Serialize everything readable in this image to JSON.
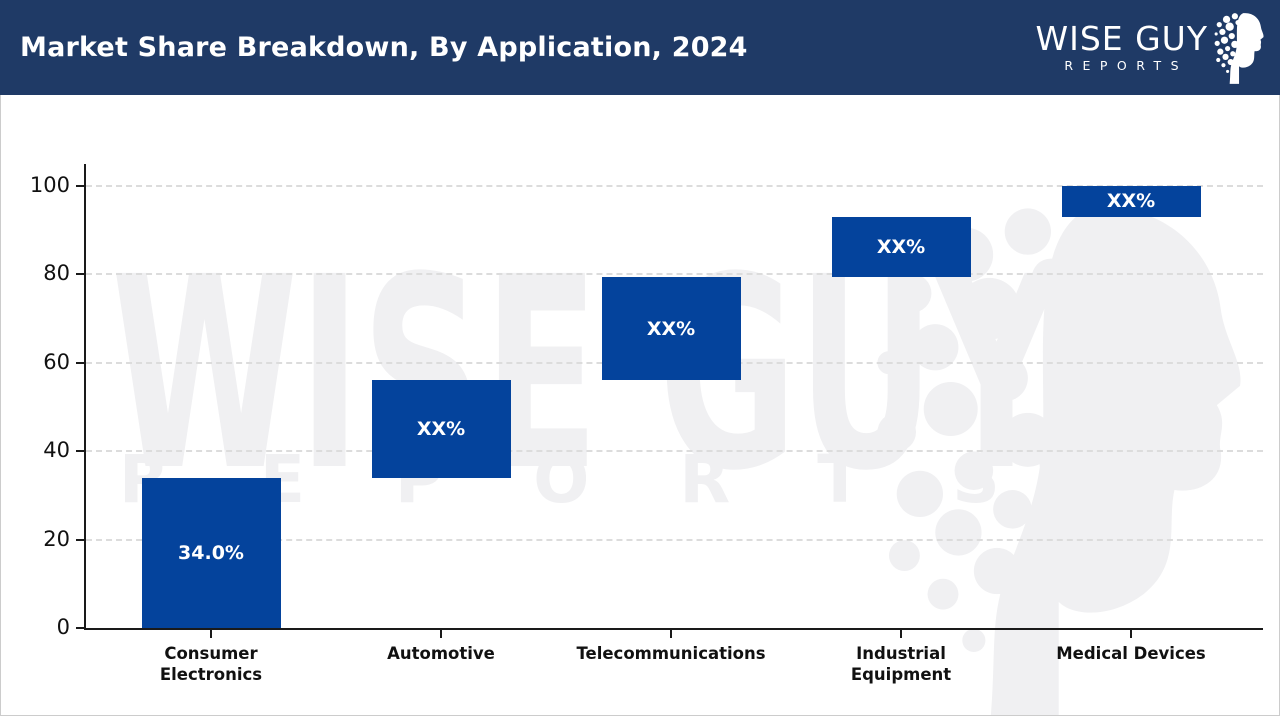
{
  "header": {
    "title": "Market Share Breakdown, By Application, 2024",
    "bg_color": "#1f3a66",
    "logo": {
      "name": "WISE GUY",
      "subtitle": "REPORTS"
    }
  },
  "watermark": {
    "word": "WISE GUY",
    "sub": "REPORTS",
    "color": "#f0f0f2"
  },
  "chart_data": {
    "type": "bar",
    "subtype": "waterfall",
    "title": "Market Share Breakdown, By Application, 2024",
    "categories": [
      "Consumer Electronics",
      "Automotive",
      "Telecommunications",
      "Industrial Equipment",
      "Medical Devices"
    ],
    "category_lines": [
      [
        "Consumer",
        "Electronics"
      ],
      [
        "Automotive"
      ],
      [
        "Telecommunications"
      ],
      [
        "Industrial",
        "Equipment"
      ],
      [
        "Medical Devices"
      ]
    ],
    "segments": [
      {
        "category": "Consumer Electronics",
        "start": 0,
        "end": 34,
        "value": 34,
        "label": "34.0%"
      },
      {
        "category": "Automotive",
        "start": 34,
        "end": 56,
        "value": 22,
        "label": "XX%"
      },
      {
        "category": "Telecommunications",
        "start": 56,
        "end": 79.5,
        "value": 23.5,
        "label": "XX%"
      },
      {
        "category": "Industrial Equipment",
        "start": 79.5,
        "end": 93,
        "value": 13.5,
        "label": "XX%"
      },
      {
        "category": "Medical Devices",
        "start": 93,
        "end": 100,
        "value": 7,
        "label": "XX%"
      }
    ],
    "yticks": [
      0,
      20,
      40,
      60,
      80,
      100
    ],
    "ylim": [
      0,
      105
    ],
    "xlabel": "",
    "ylabel": "",
    "grid": "horizontal-dashed",
    "legend": "none",
    "bar_color": "#04439c",
    "grid_color": "#dcdcdc",
    "axis_color": "#1a1a1a"
  }
}
